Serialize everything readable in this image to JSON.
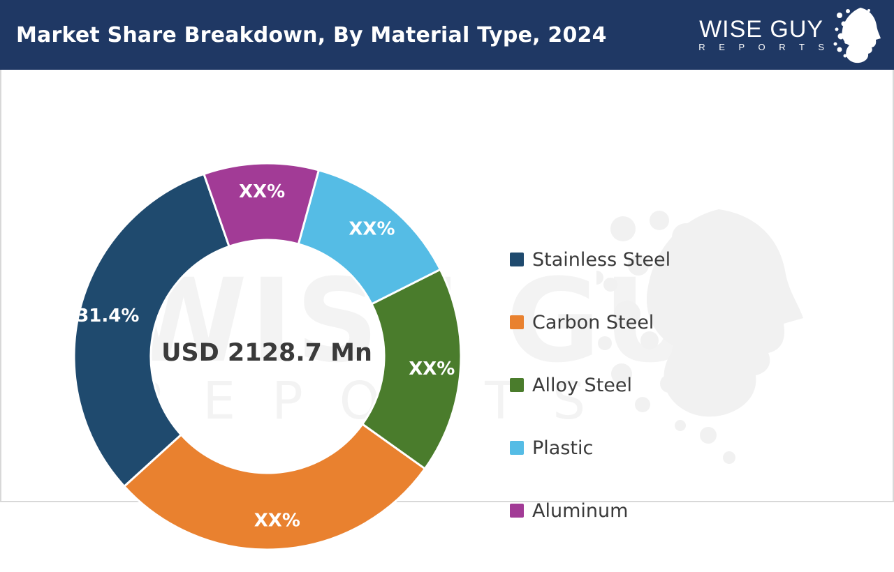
{
  "header": {
    "title": "Market Share Breakdown, By Material Type, 2024",
    "logo": {
      "line1": "WISE GUY",
      "line2": "R E P O R T S"
    }
  },
  "watermark": {
    "line1": "WISE GUY",
    "line2": "REPORTS"
  },
  "theme": {
    "header-bg": "#1f3864",
    "page-bg": "#ffffff",
    "border-color": "#d8d8d8",
    "legend-text": "#3a3a3a",
    "center-text": "#3a3a3a",
    "watermark-color": "#f3f3f3",
    "slice-label-color": "#ffffff"
  },
  "chart_data": {
    "type": "pie",
    "subtype": "donut",
    "title": "Market Share Breakdown, By Material Type, 2024",
    "center_label": "USD 2128.7 Mn",
    "start_angle_deg": 109.2,
    "direction": "counterclockwise",
    "legend_position": "right",
    "slices": [
      {
        "label": "Stainless Steel",
        "value_pct": 31.4,
        "display": "31.4%",
        "color": "#1f4a6e"
      },
      {
        "label": "Carbon Steel",
        "value_pct": 28.4,
        "display": "XX%",
        "color": "#e9812f"
      },
      {
        "label": "Alloy Steel",
        "value_pct": 17.3,
        "display": "XX%",
        "color": "#4a7c2c"
      },
      {
        "label": "Plastic",
        "value_pct": 13.3,
        "display": "XX%",
        "color": "#55bce5"
      },
      {
        "label": "Aluminum",
        "value_pct": 9.6,
        "display": "XX%",
        "color": "#a23b96"
      }
    ]
  }
}
